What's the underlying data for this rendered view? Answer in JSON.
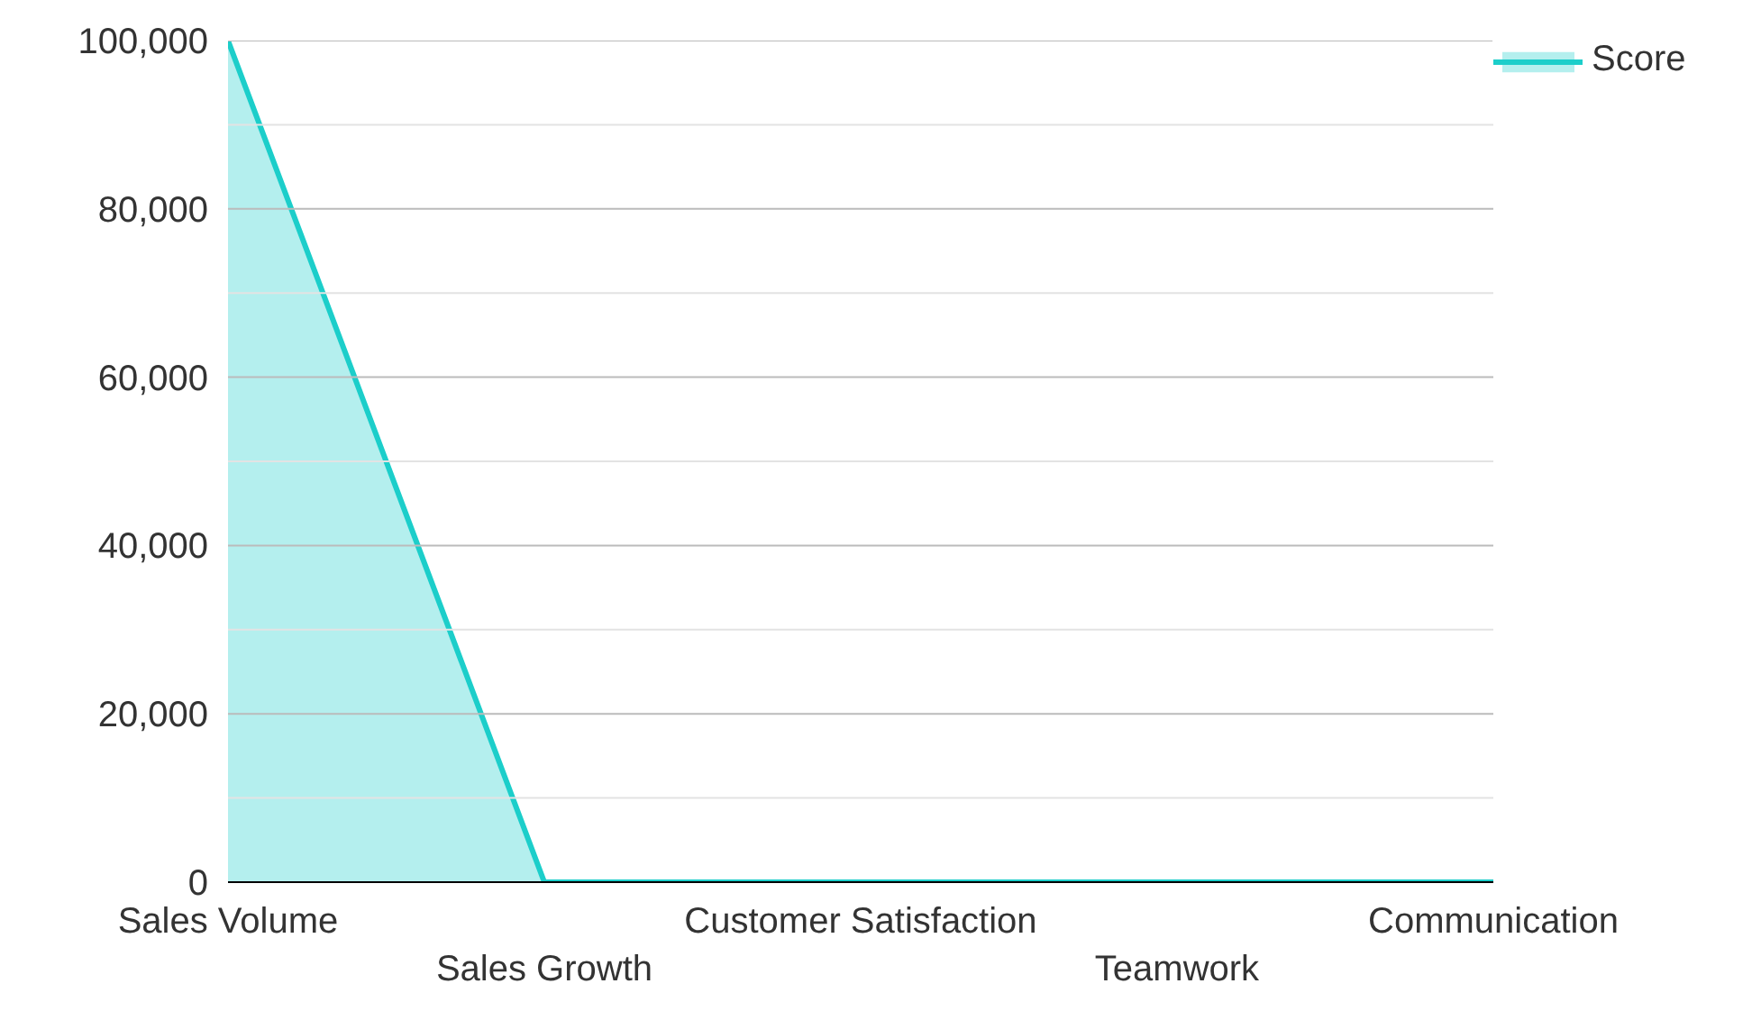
{
  "chart_data": {
    "type": "area",
    "categories": [
      "Sales Volume",
      "Sales Growth",
      "Customer Satisfaction",
      "Teamwork",
      "Communication"
    ],
    "series": [
      {
        "name": "Score",
        "color": "#1cceca",
        "values": [
          100000,
          0,
          0,
          0,
          0
        ]
      }
    ],
    "ylim": [
      0,
      100000
    ],
    "yticks": [
      0,
      {
        "value": 10000,
        "label": null
      },
      {
        "value": 20000,
        "label": "20,000"
      },
      {
        "value": 30000,
        "label": null
      },
      {
        "value": 40000,
        "label": "40,000"
      },
      {
        "value": 50000,
        "label": null
      },
      {
        "value": 60000,
        "label": "60,000"
      },
      {
        "value": 70000,
        "label": null
      },
      {
        "value": 80000,
        "label": "80,000"
      },
      {
        "value": 90000,
        "label": null
      },
      {
        "value": 100000,
        "label": "100,000"
      }
    ],
    "grid": "y",
    "legend": "top right"
  }
}
